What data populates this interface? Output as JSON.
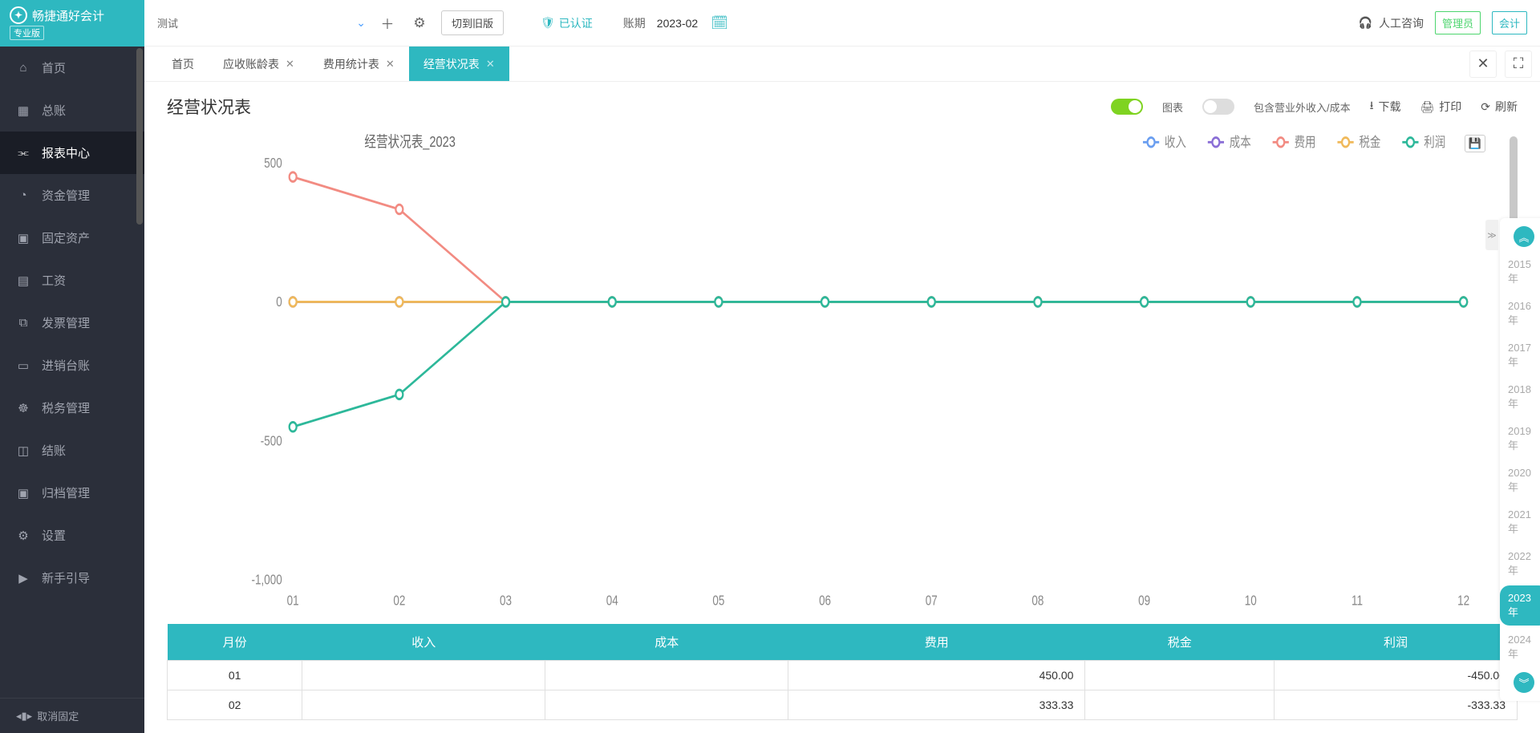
{
  "brand": {
    "name": "畅捷通好会计",
    "edition": "专业版"
  },
  "sidebar": {
    "items": [
      {
        "label": "首页",
        "icon": "⌂"
      },
      {
        "label": "总账",
        "icon": "▦"
      },
      {
        "label": "报表中心",
        "icon": "⫘"
      },
      {
        "label": "资金管理",
        "icon": "◔"
      },
      {
        "label": "固定资产",
        "icon": "▣"
      },
      {
        "label": "工资",
        "icon": "▤"
      },
      {
        "label": "发票管理",
        "icon": "⧉"
      },
      {
        "label": "进销台账",
        "icon": "▭"
      },
      {
        "label": "税务管理",
        "icon": "☸"
      },
      {
        "label": "结账",
        "icon": "◫"
      },
      {
        "label": "归档管理",
        "icon": "▣"
      },
      {
        "label": "设置",
        "icon": "⚙"
      },
      {
        "label": "新手引导",
        "icon": "▶"
      }
    ],
    "activeIndex": 2,
    "footer": "取消固定"
  },
  "topbar": {
    "company": "测试",
    "switchOld": "切到旧版",
    "verified": "已认证",
    "periodLabel": "账期",
    "periodValue": "2023-02",
    "support": "人工咨询",
    "roleAdmin": "管理员",
    "roleAccount": "会计"
  },
  "tabs": {
    "items": [
      {
        "label": "首页",
        "closable": false
      },
      {
        "label": "应收账龄表",
        "closable": true
      },
      {
        "label": "费用统计表",
        "closable": true
      },
      {
        "label": "经营状况表",
        "closable": true
      }
    ],
    "activeIndex": 3
  },
  "page": {
    "title": "经营状况表",
    "toggleChartLabel": "图表",
    "toggleIncludeLabel": "包含营业外收入/成本",
    "download": "下载",
    "print": "打印",
    "refresh": "刷新"
  },
  "chart": {
    "title": "经营状况表_2023",
    "type": "line",
    "background_color": "#ffffff",
    "grid_color": "#f0f0f0",
    "axis_label_fontsize": 12,
    "axis_label_color": "#888888",
    "title_fontsize": 13,
    "line_width": 2,
    "marker_radius": 4,
    "marker_style": "circle-open",
    "xCategories": [
      "01",
      "02",
      "03",
      "04",
      "05",
      "06",
      "07",
      "08",
      "09",
      "10",
      "11",
      "12"
    ],
    "yTicks": [
      -1000,
      -500,
      0,
      500
    ],
    "ylim": [
      -1000,
      500
    ],
    "series": [
      {
        "name": "收入",
        "color": "#6a9ef0",
        "values": [
          0,
          0,
          0,
          0,
          0,
          0,
          0,
          0,
          0,
          0,
          0,
          0
        ]
      },
      {
        "name": "成本",
        "color": "#8a6ed6",
        "values": [
          0,
          0,
          0,
          0,
          0,
          0,
          0,
          0,
          0,
          0,
          0,
          0
        ]
      },
      {
        "name": "费用",
        "color": "#f28b82",
        "values": [
          450,
          333.33,
          0,
          0,
          0,
          0,
          0,
          0,
          0,
          0,
          0,
          0
        ]
      },
      {
        "name": "税金",
        "color": "#f0b95a",
        "values": [
          0,
          0,
          0,
          0,
          0,
          0,
          0,
          0,
          0,
          0,
          0,
          0
        ]
      },
      {
        "name": "利润",
        "color": "#2db89a",
        "values": [
          -450,
          -333.33,
          0,
          0,
          0,
          0,
          0,
          0,
          0,
          0,
          0,
          0
        ]
      }
    ]
  },
  "table": {
    "columns": [
      "月份",
      "收入",
      "成本",
      "费用",
      "税金",
      "利润"
    ],
    "columnWidths": [
      "10%",
      "18%",
      "18%",
      "22%",
      "14%",
      "18%"
    ],
    "rows": [
      {
        "month": "01",
        "income": "",
        "cost": "",
        "expense": "450.00",
        "tax": "",
        "profit": "-450.00"
      },
      {
        "month": "02",
        "income": "",
        "cost": "",
        "expense": "333.33",
        "tax": "",
        "profit": "-333.33"
      }
    ]
  },
  "yearRail": {
    "years": [
      "2015年",
      "2016年",
      "2017年",
      "2018年",
      "2019年",
      "2020年",
      "2021年",
      "2022年",
      "2023年",
      "2024年"
    ],
    "activeIndex": 8
  },
  "colors": {
    "accent": "#2eb8c0",
    "sidebar_bg": "#2b2f3a",
    "toggle_on": "#7fd321"
  }
}
